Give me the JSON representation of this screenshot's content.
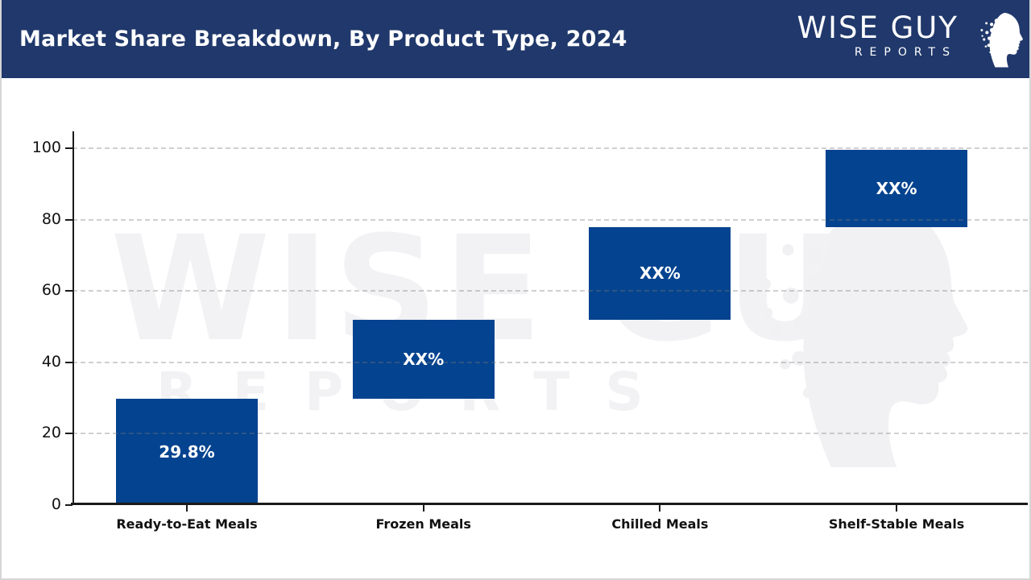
{
  "header": {
    "title": "Market Share Breakdown, By Product Type, 2024",
    "logo": {
      "line1": "WISE GUY",
      "line2": "REPORTS"
    }
  },
  "watermark": {
    "line1": "WISE GU",
    "line2": "REPORTS"
  },
  "chart_data": {
    "type": "bar",
    "subtype": "waterfall-floating-bars",
    "title": "Market Share Breakdown, By Product Type, 2024",
    "categories": [
      "Ready-to-Eat Meals",
      "Frozen Meals",
      "Chilled Meals",
      "Shelf-Stable Meals"
    ],
    "segments": [
      {
        "category": "Ready-to-Eat Meals",
        "base": 0,
        "top": 29.8,
        "label": "29.8%"
      },
      {
        "category": "Frozen Meals",
        "base": 29.8,
        "top": 52.0,
        "label": "XX%"
      },
      {
        "category": "Chilled Meals",
        "base": 52.0,
        "top": 77.8,
        "label": "XX%"
      },
      {
        "category": "Shelf-Stable Meals",
        "base": 77.8,
        "top": 99.6,
        "label": "XX%"
      }
    ],
    "yticks": [
      0,
      20,
      40,
      60,
      80,
      100
    ],
    "ylim": [
      0,
      105
    ],
    "xlabel": "",
    "ylabel": "",
    "grid": "horizontal-dashed",
    "legend": "none",
    "bar_color": "#04438F",
    "bar_label_color": "#ffffff",
    "header_color": "#20386B",
    "axis_color": "#1a1a1a",
    "gridline_color": "#d8d8d8"
  }
}
